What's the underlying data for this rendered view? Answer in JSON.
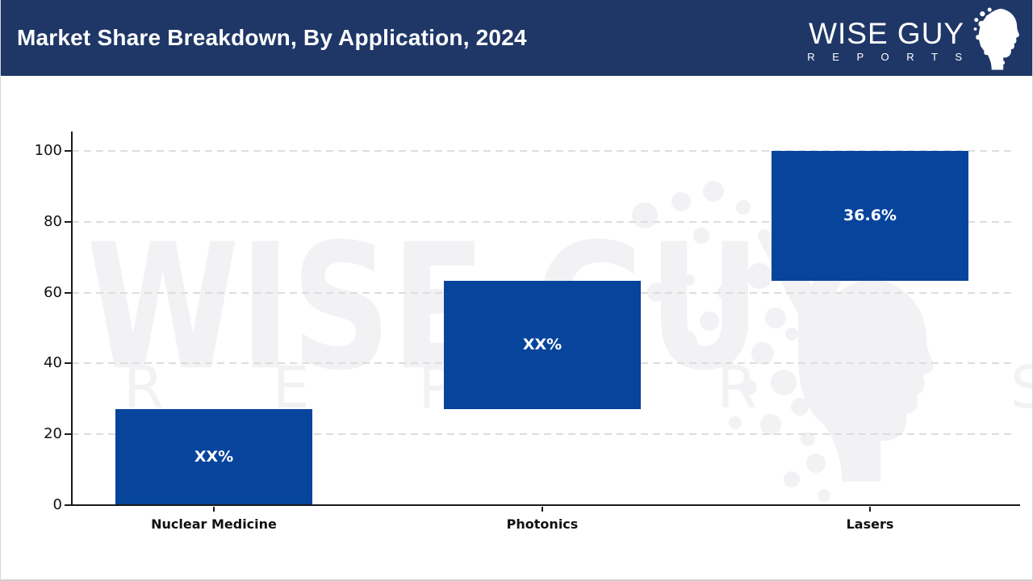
{
  "header": {
    "title": "Market Share Breakdown, By Application, 2024",
    "bg_color": "#1f3767",
    "logo": {
      "line1": "WISE GUY",
      "line2": "R E P O R T S"
    }
  },
  "watermark": {
    "line1": "WISE GUY",
    "line2": "R E P O R T S"
  },
  "chart_data": {
    "type": "bar",
    "subtype": "floating-segment (waterfall-style) vertical bars",
    "title": "Market Share Breakdown, By Application, 2024",
    "categories": [
      "Nuclear Medicine",
      "Photonics",
      "Lasers"
    ],
    "bars": [
      {
        "category": "Nuclear Medicine",
        "start": 0,
        "end": 27.2,
        "label": "XX%"
      },
      {
        "category": "Photonics",
        "start": 27.2,
        "end": 63.4,
        "label": "XX%"
      },
      {
        "category": "Lasers",
        "start": 63.4,
        "end": 100,
        "label": "36.6%"
      }
    ],
    "xlabel": "",
    "ylabel": "",
    "yticks": [
      0,
      20,
      40,
      60,
      80,
      100
    ],
    "ylim": [
      0,
      105
    ],
    "grid": "horizontal dashed light-gray",
    "legend": "none",
    "bar_color": "#07449c",
    "bar_label_color": "#ffffff",
    "axis_color": "#1a1a1a"
  }
}
